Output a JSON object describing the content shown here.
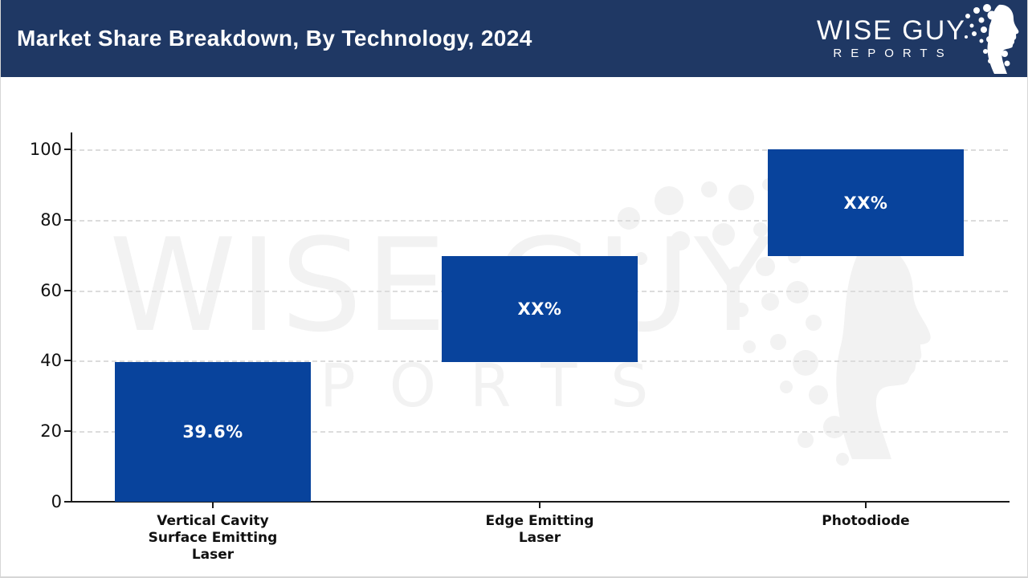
{
  "header": {
    "title": "Market Share Breakdown, By Technology, 2024",
    "logo_line1": "WISE GUY",
    "logo_line2": "REPORTS"
  },
  "watermark": {
    "line1": "WISE GUY",
    "line2": "REPORTS"
  },
  "colors": {
    "header_bg": "#1f3864",
    "bar_blue": "#08439c",
    "grid": "#dcdcdc",
    "axis": "#1a1a1a",
    "bar_label_text": "#ffffff",
    "watermark": "#f2f2f2"
  },
  "chart_data": {
    "type": "bar",
    "subtype": "floating-waterfall",
    "title": "Market Share Breakdown, By Technology, 2024",
    "categories": [
      [
        "Vertical Cavity",
        "Surface Emitting",
        "Laser"
      ],
      [
        "Edge Emitting",
        "Laser"
      ],
      [
        "Photodiode"
      ]
    ],
    "bars": [
      {
        "category": "Vertical Cavity Surface Emitting Laser",
        "start": 0,
        "end": 39.6,
        "label": "39.6%"
      },
      {
        "category": "Edge Emitting Laser",
        "start": 39.6,
        "end": 69.6,
        "label": "XX%"
      },
      {
        "category": "Photodiode",
        "start": 69.6,
        "end": 100,
        "label": "XX%"
      }
    ],
    "ylim": [
      0,
      100
    ],
    "yticks": [
      0,
      20,
      40,
      60,
      80,
      100
    ],
    "xlabel": "",
    "ylabel": "",
    "grid": "horizontal-dashed",
    "legend": "none",
    "bar_color": "#08439c"
  }
}
